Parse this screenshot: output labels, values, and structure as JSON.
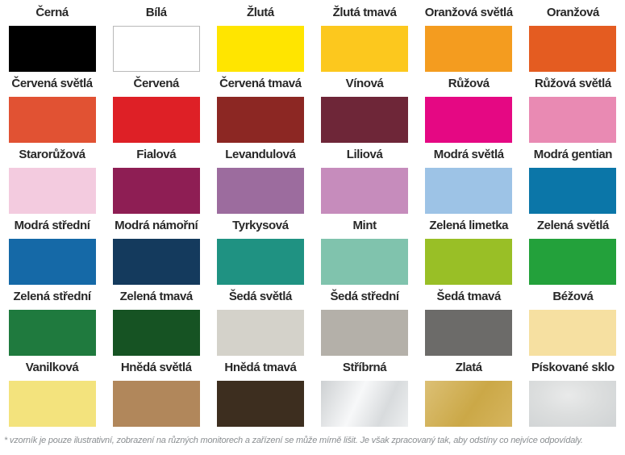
{
  "chart_data": {
    "type": "table",
    "description": "Color sample palette (vzorník barev) – 6x6 grid of named color swatches",
    "grid": {
      "columns": 6,
      "rows": 6
    },
    "entries": [
      {
        "label": "Černá",
        "background": "#000000"
      },
      {
        "label": "Bílá",
        "background": "#ffffff",
        "border": "#b9b9b9"
      },
      {
        "label": "Žlutá",
        "background": "#ffe500"
      },
      {
        "label": "Žlutá tmavá",
        "background": "#fcc81e"
      },
      {
        "label": "Oranžová světlá",
        "background": "#f49c1f"
      },
      {
        "label": "Oranžová",
        "background": "#e45c21"
      },
      {
        "label": "Červená světlá",
        "background": "#e15233"
      },
      {
        "label": "Červená",
        "background": "#de2026"
      },
      {
        "label": "Červená tmavá",
        "background": "#8c2723"
      },
      {
        "label": "Vínová",
        "background": "#6e2638"
      },
      {
        "label": "Růžová",
        "background": "#e50883"
      },
      {
        "label": "Růžová světlá",
        "background": "#e98ab3"
      },
      {
        "label": "Starorůžová",
        "background": "#f3cbdf"
      },
      {
        "label": "Fialová",
        "background": "#8e1e54"
      },
      {
        "label": "Levandulová",
        "background": "#9c6c9e"
      },
      {
        "label": "Liliová",
        "background": "#c68cbc"
      },
      {
        "label": "Modrá světlá",
        "background": "#9dc3e6"
      },
      {
        "label": "Modrá gentian",
        "background": "#0b76a8"
      },
      {
        "label": "Modrá střední",
        "background": "#1569a7"
      },
      {
        "label": "Modrá námořní",
        "background": "#143a5d"
      },
      {
        "label": "Tyrkysová",
        "background": "#1f9282"
      },
      {
        "label": "Mint",
        "background": "#80c3ad"
      },
      {
        "label": "Zelená limetka",
        "background": "#99bf26"
      },
      {
        "label": "Zelená světlá",
        "background": "#23a13b"
      },
      {
        "label": "Zelená střední",
        "background": "#1f7a3e"
      },
      {
        "label": "Zelená tmavá",
        "background": "#165323"
      },
      {
        "label": "Šedá světlá",
        "background": "#d4d2ca"
      },
      {
        "label": "Šedá střední",
        "background": "#b4b0a9"
      },
      {
        "label": "Šedá tmavá",
        "background": "#6c6b69"
      },
      {
        "label": "Béžová",
        "background": "#f6e0a1"
      },
      {
        "label": "Vanilková",
        "background": "#f3e37d"
      },
      {
        "label": "Hnědá světlá",
        "background": "#b1875b"
      },
      {
        "label": "Hnědá tmavá",
        "background": "#3d2e1f"
      },
      {
        "label": "Stříbrná",
        "background": "linear-gradient(115deg, #cdd0d2 0%, #f7f8f9 42%, #d8dbdd 72%, #edeff0 100%)"
      },
      {
        "label": "Zlatá",
        "background": "linear-gradient(125deg, #dcc075 0%, #cba847 55%, #d6b55e 100%)"
      },
      {
        "label": "Pískované sklo",
        "background": "radial-gradient(ellipse at 45% 32%, #e9eaea 0%, #dcdedE 45%, #d2d5d6 90%)"
      }
    ]
  },
  "footnote": "* vzorník je pouze ilustrativní, zobrazení na různých monitorech a zařízení se může mírně lišit. Je však zpracovaný tak, aby odstíny co nejvíce odpovídaly."
}
